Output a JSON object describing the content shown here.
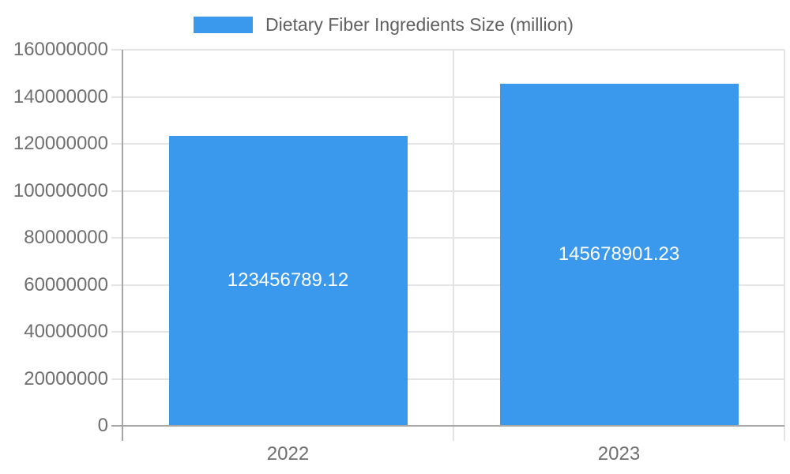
{
  "chart_data": {
    "type": "bar",
    "title": "Dietary Fiber Ingredients Size (million)",
    "categories": [
      "2022",
      "2023"
    ],
    "values": [
      123456789.12,
      145678901.23
    ],
    "value_labels": [
      "123456789.12",
      "145678901.23"
    ],
    "xlabel": "",
    "ylabel": "",
    "ylim": [
      0,
      160000000
    ],
    "ytick_step": 20000000,
    "ytick_labels": [
      "0",
      "20000000",
      "40000000",
      "60000000",
      "80000000",
      "100000000",
      "120000000",
      "140000000",
      "160000000"
    ],
    "grid": "horizontal-and-category-boundaries",
    "legend_position": "top-center",
    "colors": {
      "bar": "#3A99EC",
      "value_label_text": "#FFFFFF",
      "axis_text": "#6F6F6F",
      "legend_text": "#616161",
      "grid_line": "#E4E4E4",
      "axis_line": "#A6A6A6"
    }
  }
}
